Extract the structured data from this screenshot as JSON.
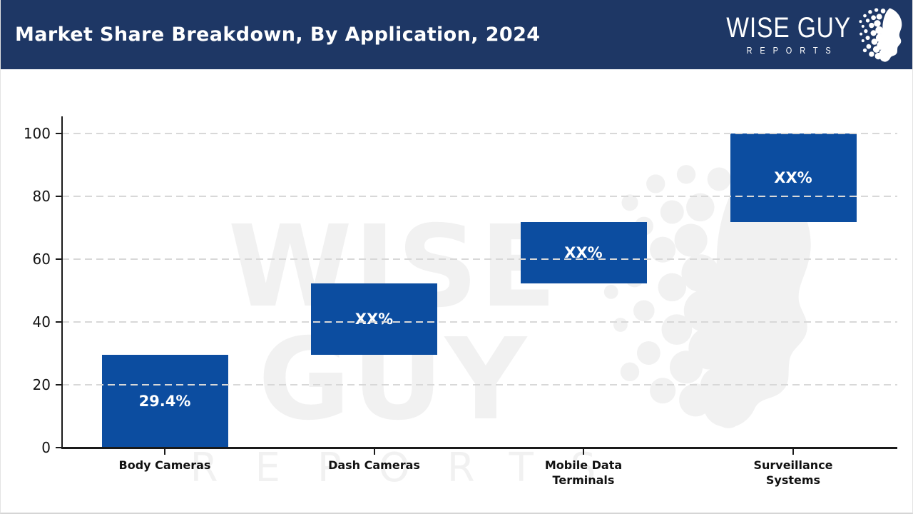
{
  "header": {
    "title": "Market Share Breakdown, By Application, 2024",
    "logo": {
      "line1": "WISE GUY",
      "line2": "REPORTS"
    }
  },
  "watermark": {
    "line1": "WISE GUY",
    "line2": "REPORTS"
  },
  "colors": {
    "header_bg": "#1e3765",
    "bar": "#0c4da0",
    "grid": "#d8d8d8",
    "axis": "#1a1a1a",
    "watermark": "#f1f1f1",
    "bar_label_text": "#ffffff",
    "header_text": "#ffffff"
  },
  "chart_data": {
    "type": "bar",
    "subtype": "waterfall",
    "title": "Market Share Breakdown, By Application, 2024",
    "xlabel": "",
    "ylabel": "",
    "ylim": [
      0,
      105
    ],
    "y_ticks": [
      0,
      20,
      40,
      60,
      80,
      100
    ],
    "grid": "horizontal-dashed",
    "legend": "none",
    "categories": [
      "Body Cameras",
      "Dash Cameras",
      "Mobile Data Terminals",
      "Surveillance Systems"
    ],
    "category_label_lines": [
      [
        "Body Cameras"
      ],
      [
        "Dash Cameras"
      ],
      [
        "Mobile Data",
        "Terminals"
      ],
      [
        "Surveillance",
        "Systems"
      ]
    ],
    "segments": [
      {
        "category": "Body Cameras",
        "start": 0,
        "end": 29.4,
        "delta": 29.4,
        "label": "29.4%"
      },
      {
        "category": "Dash Cameras",
        "start": 29.4,
        "end": 52.3,
        "delta": 22.9,
        "label": "XX%"
      },
      {
        "category": "Mobile Data Terminals",
        "start": 52.3,
        "end": 71.7,
        "delta": 19.4,
        "label": "XX%"
      },
      {
        "category": "Surveillance Systems",
        "start": 71.7,
        "end": 100,
        "delta": 28.3,
        "label": "XX%"
      }
    ]
  }
}
